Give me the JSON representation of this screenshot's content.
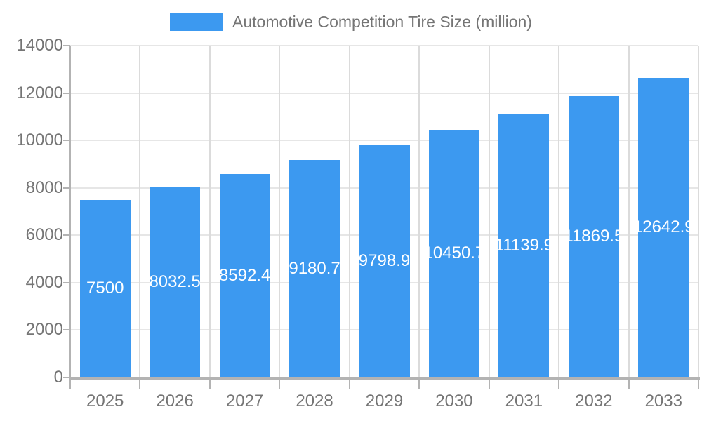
{
  "chart_data": {
    "type": "bar",
    "series_name": "Automotive Competition Tire Size (million)",
    "categories": [
      "2025",
      "2026",
      "2027",
      "2028",
      "2029",
      "2030",
      "2031",
      "2032",
      "2033"
    ],
    "values": [
      7500,
      8032.5,
      8592.4,
      9180.7,
      9798.9,
      10450.7,
      11139.9,
      11869.5,
      12642.9
    ],
    "bar_value_labels": [
      "7500",
      "8032.5",
      "8592.4",
      "9180.7",
      "9798.9",
      "10450.7",
      "11139.9",
      "11869.5",
      "12642.9"
    ],
    "ylim": [
      0,
      14000
    ],
    "ytick_interval": 2000,
    "ytick_labels": [
      "0",
      "2000",
      "4000",
      "6000",
      "8000",
      "10000",
      "12000",
      "14000"
    ],
    "grid": true,
    "legend_position": "top",
    "colors": {
      "bar": "#3C99F0",
      "bar_label": "#FFFFFF",
      "axis_line": "#B3B3B3",
      "h_gridline": "#E6E6E6",
      "v_gridline": "#DBDBDB",
      "tick_text": "#757575",
      "legend_text": "#757575"
    }
  }
}
